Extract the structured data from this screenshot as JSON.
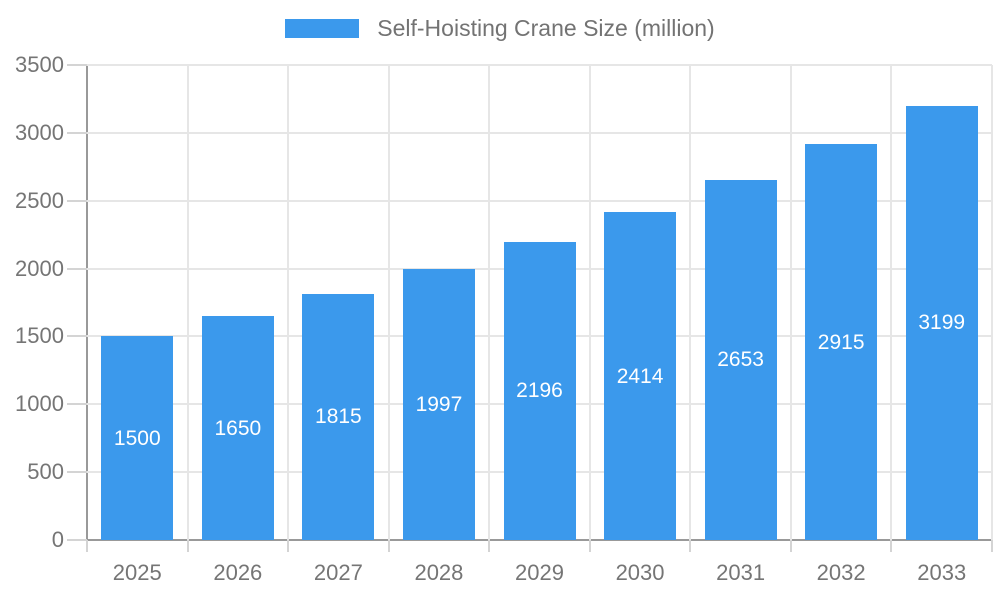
{
  "legend": {
    "label": "Self-Hoisting Crane Size (million)"
  },
  "chart_data": {
    "type": "bar",
    "title": "Self-Hoisting Crane Size (million)",
    "categories": [
      "2025",
      "2026",
      "2027",
      "2028",
      "2029",
      "2030",
      "2031",
      "2032",
      "2033"
    ],
    "values": [
      1500,
      1650,
      1815,
      1997,
      2196,
      2414,
      2653,
      2915,
      3199
    ],
    "xlabel": "",
    "ylabel": "",
    "ylim": [
      0,
      3500
    ],
    "yticks": [
      0,
      500,
      1000,
      1500,
      2000,
      2500,
      3000,
      3500
    ],
    "grid": true,
    "legend_position": "top-center",
    "value_labels": "inside-center"
  },
  "colors": {
    "bar": "#3b99ec",
    "value_label": "#ffffff",
    "axis_line": "#999999",
    "grid_line": "#e6e6e6",
    "tick_mark": "#d4d4d4",
    "axis_text": "#757575",
    "legend_text": "#737373",
    "background": "#ffffff"
  }
}
